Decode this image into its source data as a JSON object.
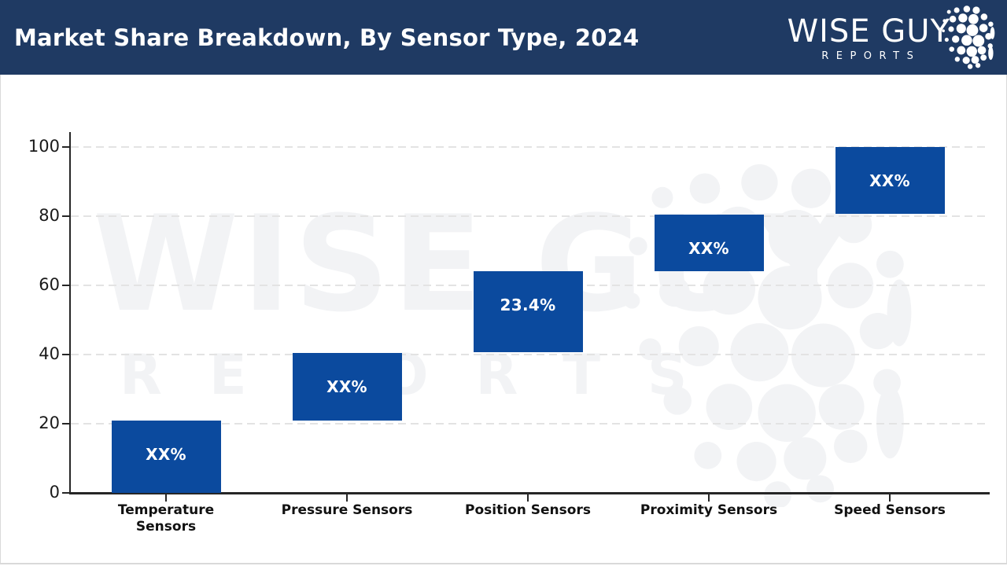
{
  "header": {
    "title": "Market Share Breakdown, By Sensor Type, 2024",
    "logo": {
      "line1": "WISE GUY",
      "line2": "REPORTS"
    }
  },
  "watermark": {
    "line1": "WISE GUY",
    "line2": "REPORTS"
  },
  "colors": {
    "header_bg": "#1f3a63",
    "bar": "#0b4a9e",
    "bar_label": "#ffffff",
    "grid": "#e3e3e3",
    "axis": "#262626",
    "watermark": "#f2f3f5",
    "card_border": "#d9d9d9"
  },
  "chart_data": {
    "type": "bar",
    "subtype": "waterfall",
    "title": "Market Share Breakdown, By Sensor Type, 2024",
    "categories": [
      "Temperature\nSensors",
      "Pressure Sensors",
      "Position Sensors",
      "Proximity Sensors",
      "Speed Sensors"
    ],
    "segments": [
      {
        "category": "Temperature Sensors",
        "start": 0,
        "end": 21,
        "label": "XX%"
      },
      {
        "category": "Pressure Sensors",
        "start": 21,
        "end": 40.4,
        "label": "XX%"
      },
      {
        "category": "Position Sensors",
        "start": 40.7,
        "end": 64.1,
        "label": "23.4%"
      },
      {
        "category": "Proximity Sensors",
        "start": 64.1,
        "end": 80.5,
        "label": "XX%"
      },
      {
        "category": "Speed Sensors",
        "start": 80.7,
        "end": 100,
        "label": "XX%"
      }
    ],
    "xlabel": "",
    "ylabel": "",
    "ylim": [
      0,
      100
    ],
    "yticks": [
      0,
      20,
      40,
      60,
      80,
      100
    ],
    "grid": "horizontal-dashed",
    "legend": "none",
    "bar_color": "#0b4a9e",
    "value_label_color": "#ffffff"
  }
}
